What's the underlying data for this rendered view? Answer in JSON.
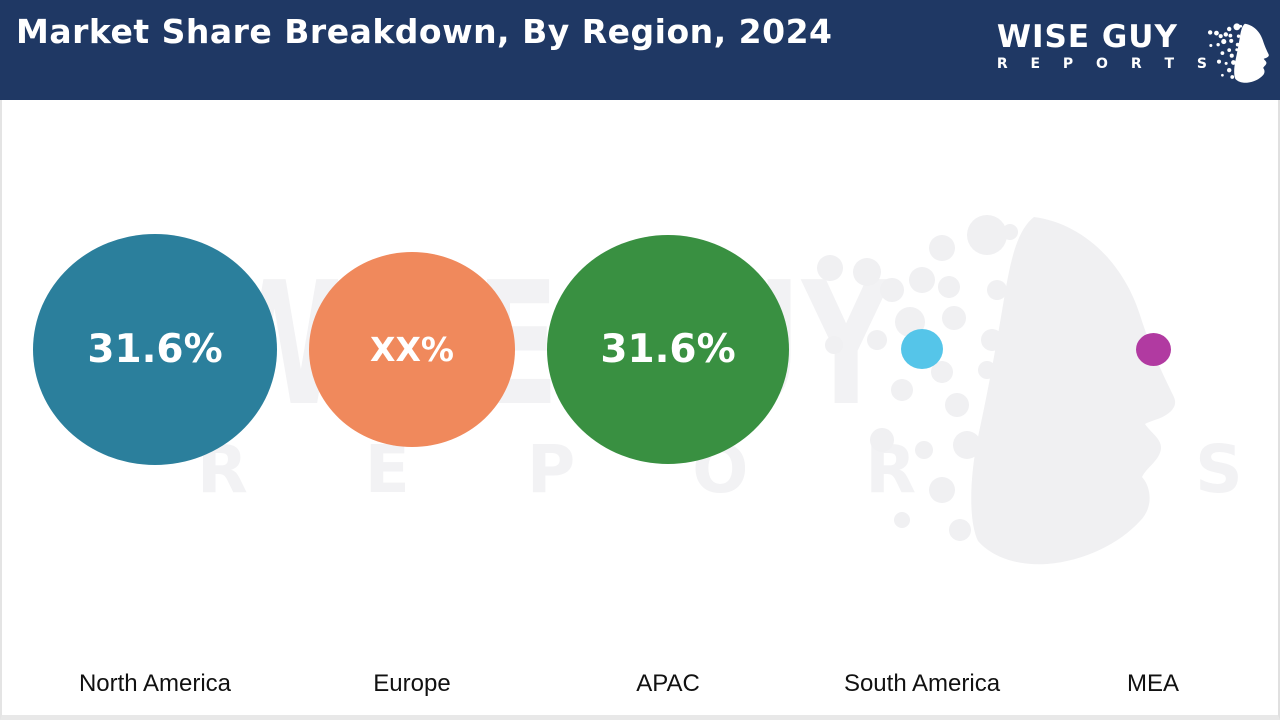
{
  "header": {
    "title": "Market Share Breakdown, By Region, 2024",
    "logo_line1": "WISE GUY",
    "logo_line2": "R E P O R T S"
  },
  "watermark": {
    "line1": "WISE GUY",
    "line2": "R E P O R T S"
  },
  "chart_data": {
    "type": "bubble",
    "title": "Market Share Breakdown, By Region, 2024",
    "categories": [
      "North America",
      "Europe",
      "APAC",
      "South America",
      "MEA"
    ],
    "values": [
      31.6,
      null,
      31.6,
      null,
      null
    ],
    "bubble_labels": [
      "31.6%",
      "XX%",
      "31.6%",
      "",
      ""
    ],
    "colors": [
      "#2b7f9c",
      "#f0895c",
      "#399041",
      "#55c5e9",
      "#b13aa1"
    ],
    "legend_position": "none",
    "grid": false
  },
  "colors": {
    "header_bg": "#1f3864",
    "title_text": "#ffffff",
    "category_text": "#111111",
    "watermark": "#f2f2f4",
    "border": "#e4e4e4"
  }
}
